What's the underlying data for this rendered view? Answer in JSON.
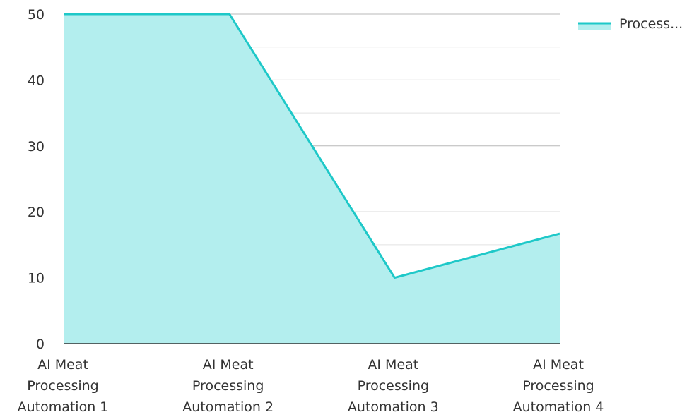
{
  "chart_data": {
    "type": "area",
    "categories": [
      [
        "AI Meat",
        "Processing",
        "Automation 1"
      ],
      [
        "AI Meat",
        "Processing",
        "Automation 2"
      ],
      [
        "AI Meat",
        "Processing",
        "Automation 3"
      ],
      [
        "AI Meat",
        "Processing",
        "Automation 4"
      ]
    ],
    "series": [
      {
        "name": "Process...",
        "values": [
          50,
          50,
          10,
          16.7
        ],
        "line_color": "#1ec8c8",
        "fill_color": "#b3eeee"
      }
    ],
    "ylim": [
      0,
      50
    ],
    "y_ticks": [
      "0",
      "10",
      "20",
      "30",
      "40",
      "50"
    ],
    "y_tick_values": [
      0,
      10,
      20,
      30,
      40,
      50
    ],
    "minor_gridlines": true,
    "grid": true,
    "legend_position": "top-right",
    "title": "",
    "xlabel": "",
    "ylabel": ""
  }
}
